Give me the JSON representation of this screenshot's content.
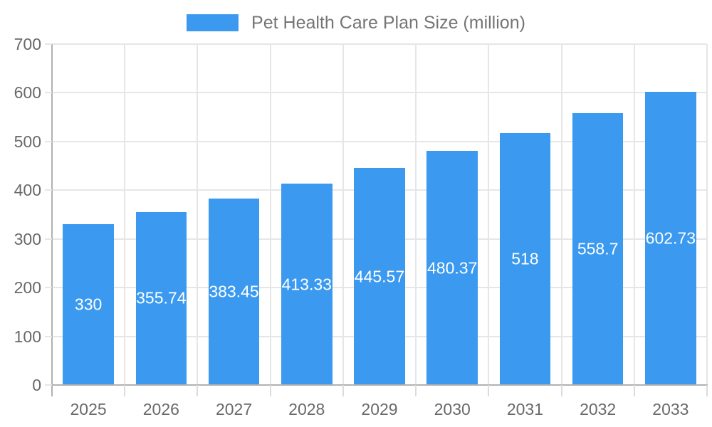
{
  "chart_data": {
    "type": "bar",
    "title": "",
    "legend": [
      "Pet Health Care Plan Size (million)"
    ],
    "categories": [
      "2025",
      "2026",
      "2027",
      "2028",
      "2029",
      "2030",
      "2031",
      "2032",
      "2033"
    ],
    "values": [
      330,
      355.74,
      383.45,
      413.33,
      445.57,
      480.37,
      518,
      558.7,
      602.73
    ],
    "value_labels": [
      "330",
      "355.74",
      "383.45",
      "413.33",
      "445.57",
      "480.37",
      "518",
      "558.7",
      "602.73"
    ],
    "xlabel": "",
    "ylabel": "",
    "ylim": [
      0,
      700
    ],
    "ytick_step": 100,
    "ytick_labels": [
      "0",
      "100",
      "200",
      "300",
      "400",
      "500",
      "600",
      "700"
    ],
    "grid": true,
    "legend_position": "top-center",
    "colors": {
      "bar": "#3b9aef",
      "grid": "#e6e6e6",
      "axis": "#b1b1b1",
      "tick_label": "#696969",
      "legend_text": "#757575",
      "value_label": "#ffffff",
      "background": "#ffffff"
    }
  }
}
